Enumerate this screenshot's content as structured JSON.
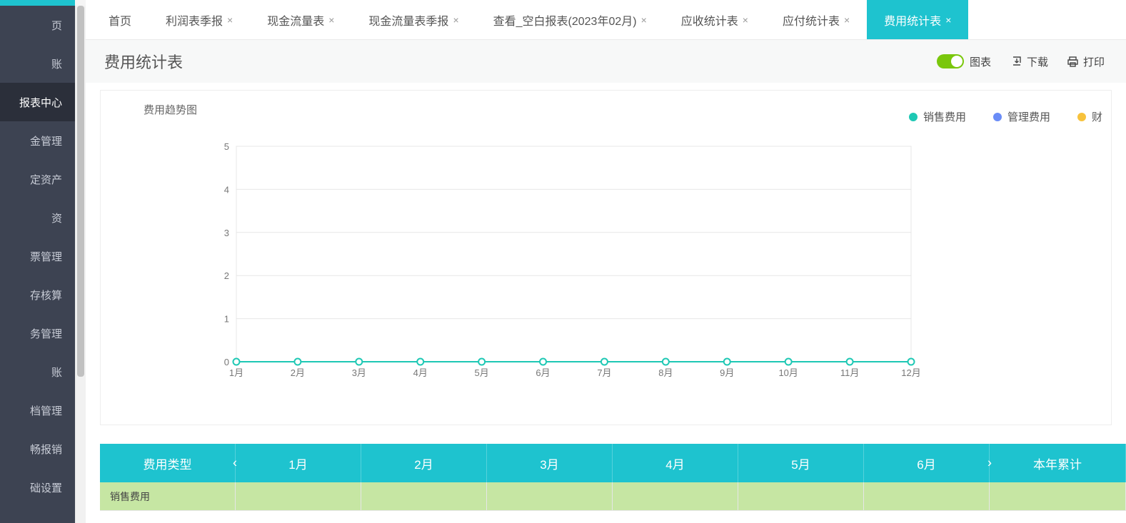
{
  "sidebar": {
    "items": [
      {
        "label": "页"
      },
      {
        "label": "账"
      },
      {
        "label": "报表中心",
        "active": true
      },
      {
        "label": "金管理"
      },
      {
        "label": "定资产"
      },
      {
        "label": "资"
      },
      {
        "label": "票管理"
      },
      {
        "label": "存核算"
      },
      {
        "label": "务管理"
      },
      {
        "label": "账"
      },
      {
        "label": "档管理"
      },
      {
        "label": "畅报销"
      },
      {
        "label": "础设置"
      }
    ]
  },
  "tabs": [
    {
      "label": "首页",
      "closable": false
    },
    {
      "label": "利润表季报",
      "closable": true
    },
    {
      "label": "现金流量表",
      "closable": true
    },
    {
      "label": "现金流量表季报",
      "closable": true
    },
    {
      "label": "查看_空白报表(2023年02月)",
      "closable": true
    },
    {
      "label": "应收统计表",
      "closable": true
    },
    {
      "label": "应付统计表",
      "closable": true
    },
    {
      "label": "费用统计表",
      "closable": true,
      "active": true
    }
  ],
  "header": {
    "title": "费用统计表",
    "toggle_label": "图表",
    "download_label": "下载",
    "print_label": "打印"
  },
  "chart": {
    "title": "费用趋势图",
    "type": "line",
    "x_labels": [
      "1月",
      "2月",
      "3月",
      "4月",
      "5月",
      "6月",
      "7月",
      "8月",
      "9月",
      "10月",
      "11月",
      "12月"
    ],
    "y_ticks": [
      0,
      1,
      2,
      3,
      4,
      5
    ],
    "ylim": [
      0,
      5
    ],
    "grid_color": "#e7e7e7",
    "axis_label_color": "#777777",
    "axis_label_fontsize": 13,
    "background_color": "#ffffff",
    "marker_radius": 4.5,
    "line_width": 2,
    "legend": [
      {
        "label": "销售费用",
        "color": "#1ec8b4"
      },
      {
        "label": "管理费用",
        "color": "#6a8cf7"
      },
      {
        "label": "财",
        "color": "#f7c23c"
      }
    ],
    "series": [
      {
        "name": "销售费用",
        "color": "#1ec8b4",
        "values": [
          0,
          0,
          0,
          0,
          0,
          0,
          0,
          0,
          0,
          0,
          0,
          0
        ]
      }
    ]
  },
  "table": {
    "header_bg": "#1ec3cf",
    "highlight_row_bg": "#c6e6a3",
    "type_header": "费用类型",
    "month_headers": [
      "1月",
      "2月",
      "3月",
      "4月",
      "5月",
      "6月"
    ],
    "total_header": "本年累计",
    "rows": [
      {
        "type": "销售费用",
        "highlight": true,
        "cells": [
          "",
          "",
          "",
          "",
          "",
          ""
        ],
        "total": ""
      }
    ]
  }
}
